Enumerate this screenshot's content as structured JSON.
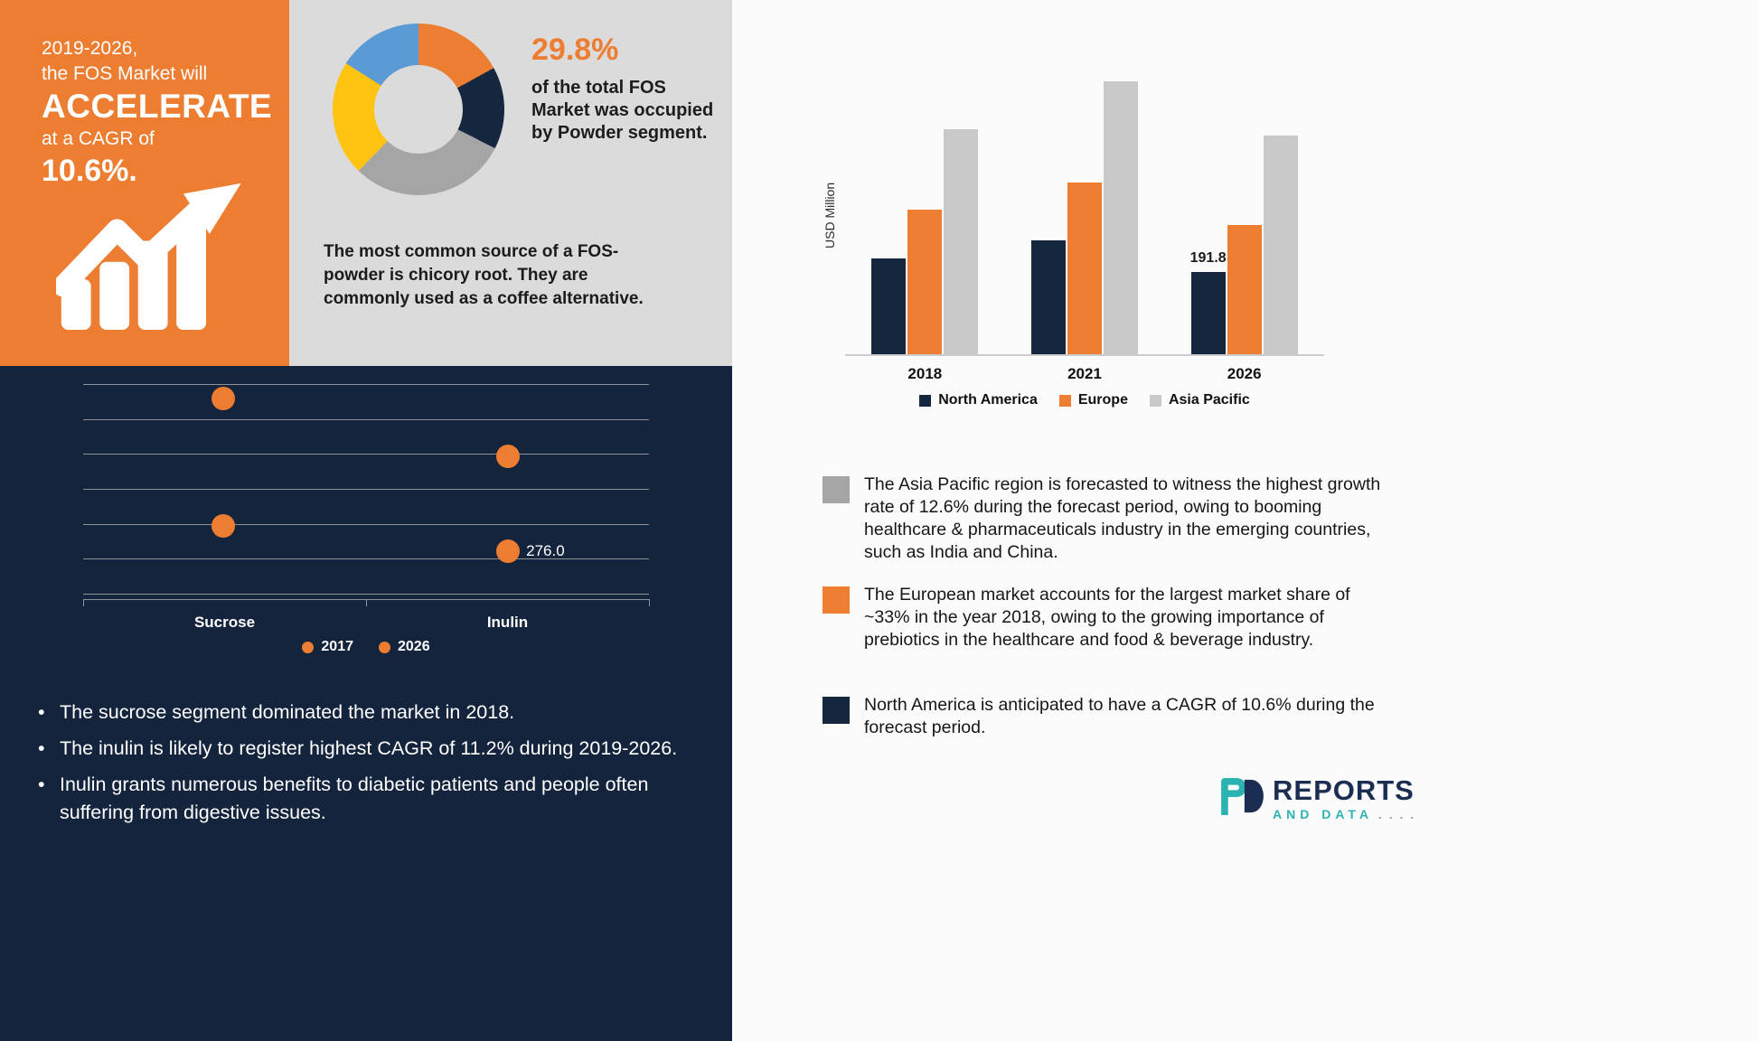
{
  "colors": {
    "orange": "#ED7D31",
    "navy": "#15263F",
    "gray": "#A5A5A5",
    "bar_gray": "#C9C9C9",
    "yellow": "#FFC312",
    "blue": "#5B9BD5",
    "panel_gray": "#DBDBDB",
    "teal": "#2BB3B1"
  },
  "hero": {
    "line1": "2019-2026,",
    "line2": "the FOS Market will",
    "line3": "ACCELERATE",
    "line4": "at a CAGR of",
    "line5": "10.6%."
  },
  "powder": {
    "stat": "29.8%",
    "stat_caption": "of the total FOS Market was occupied by Powder segment.",
    "body": "The most common source of a FOS-powder is chicory root. They are commonly used as a coffee alternative."
  },
  "bullets": [
    "The sucrose segment dominated the market in 2018.",
    "The inulin is likely to register highest CAGR of 11.2% during 2019-2026.",
    "Inulin grants numerous benefits to diabetic patients and people often suffering from digestive issues."
  ],
  "insights": [
    {
      "color": "gray",
      "text": "The Asia Pacific region is forecasted to witness the highest growth rate of 12.6% during the forecast period, owing to booming healthcare & pharmaceuticals industry in the emerging countries, such as India and China."
    },
    {
      "color": "orange",
      "text": "The European market accounts for the largest market share of ~33% in the year 2018, owing to the growing importance of prebiotics in the healthcare and food & beverage industry."
    },
    {
      "color": "navy",
      "text": "North America is anticipated to have a CAGR of 10.6% during the forecast period."
    }
  ],
  "logo": {
    "brand": "REPORTS",
    "sub": "AND DATA",
    "dots": " . . . ."
  },
  "chart_data": [
    {
      "type": "pie",
      "title": "Share of FOS market by segment (Powder highlighted)",
      "donut": true,
      "slices": [
        {
          "label": "",
          "value": 17.0,
          "color": "orange"
        },
        {
          "label": "",
          "value": 15.5,
          "color": "navy"
        },
        {
          "label": "Powder",
          "value": 29.8,
          "color": "gray"
        },
        {
          "label": "",
          "value": 21.7,
          "color": "yellow"
        },
        {
          "label": "",
          "value": 16.0,
          "color": "blue"
        }
      ]
    },
    {
      "type": "scatter",
      "title": "Sucrose vs Inulin segment, 2017 and 2026",
      "categories": [
        "Sucrose",
        "Inulin"
      ],
      "legend": [
        "2017",
        "2026"
      ],
      "gridlines": 7,
      "points": [
        {
          "category": "Sucrose",
          "x_frac": 0.248,
          "y_frac": 0.069
        },
        {
          "category": "Inulin",
          "x_frac": 0.751,
          "y_frac": 0.345
        },
        {
          "category": "Sucrose",
          "x_frac": 0.248,
          "y_frac": 0.677
        },
        {
          "category": "Inulin",
          "x_frac": 0.751,
          "y_frac": 0.797,
          "label": "276.0"
        }
      ]
    },
    {
      "type": "bar",
      "title": "FOS market by region (USD Million)",
      "categories": [
        "2018",
        "2021",
        "2026"
      ],
      "series": [
        {
          "name": "North America",
          "color": "navy",
          "values": [
            222,
            265,
            191.8
          ]
        },
        {
          "name": "Europe",
          "color": "orange",
          "values": [
            337,
            400,
            300
          ]
        },
        {
          "name": "Asia Pacific",
          "color": "bar_gray",
          "values": [
            524,
            634,
            508
          ]
        }
      ],
      "ylabel": "USD Million",
      "ylim": [
        0,
        660
      ],
      "bar_label": {
        "series": 0,
        "category": 2,
        "text": "191.8"
      },
      "legend_position": "bottom"
    }
  ]
}
